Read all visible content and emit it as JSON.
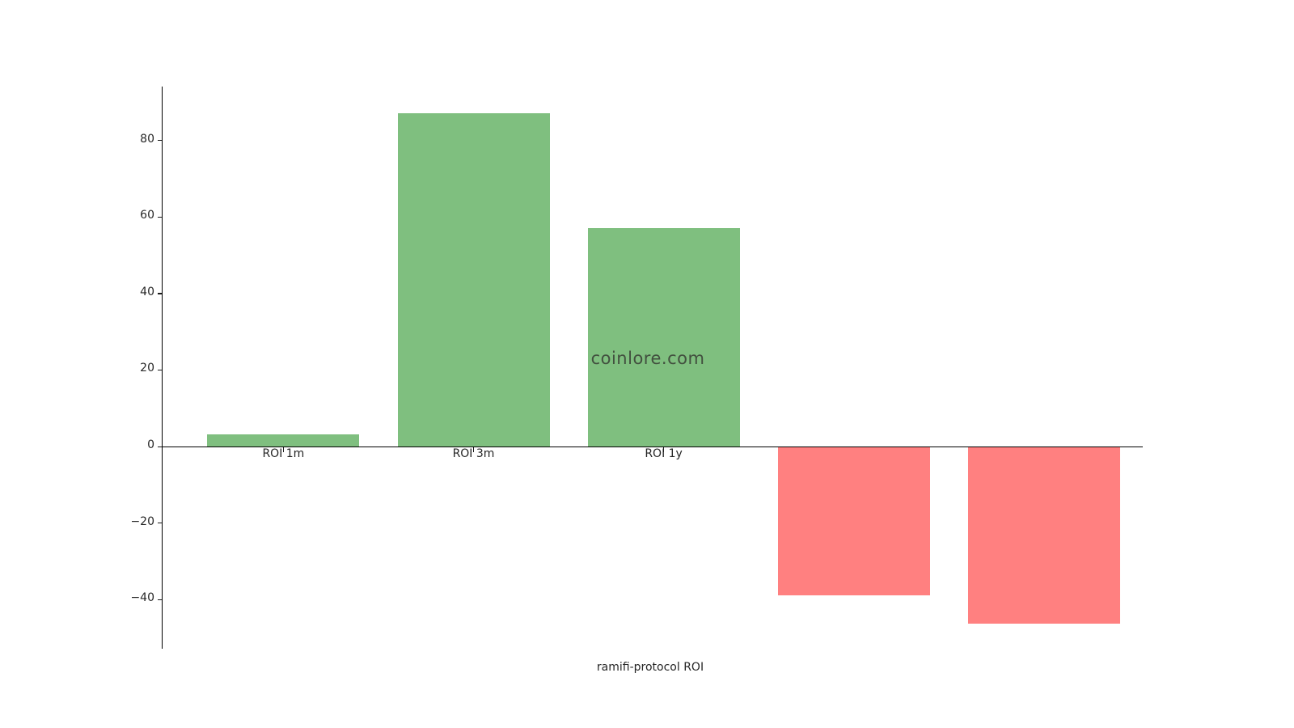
{
  "page": {
    "background_color": "#ffffff"
  },
  "chart_data": {
    "type": "bar",
    "title": "ramifi-protocol ROI",
    "watermark": "coinlore.com",
    "categories": [
      "ROI 1m",
      "ROI 3m",
      "ROI 1y",
      "",
      ""
    ],
    "values": [
      3.2,
      87.2,
      57,
      -38.6,
      -46
    ],
    "y_ticks": [
      80,
      60,
      40,
      20,
      0,
      -20,
      -40
    ],
    "ylim": [
      -52.9,
      94.1
    ],
    "grid": false,
    "legend_position": "none",
    "positive_color": "#7fbf7f",
    "negative_color": "#ff8080",
    "axis_color": "#000000",
    "tick_text_color": "#262626",
    "watermark_color": "#42503f"
  }
}
